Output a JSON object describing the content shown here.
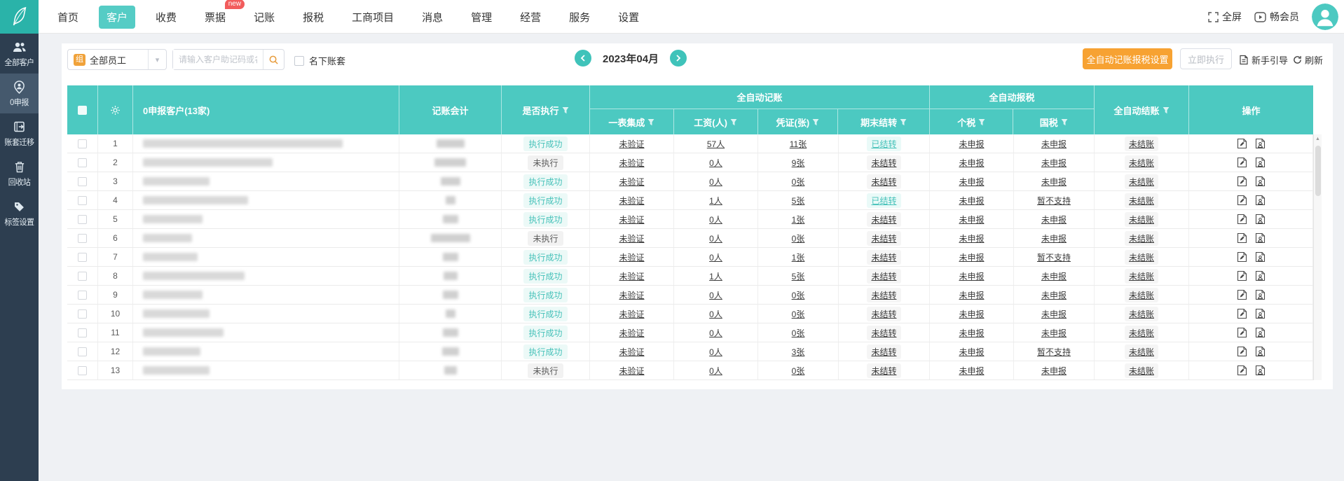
{
  "colors": {
    "teal": "#4cc9c1",
    "teal_dark": "#2ab3a9",
    "sidebar": "#2d3e50",
    "orange": "#f7a232",
    "badge_red": "#f25c5c"
  },
  "topnav": {
    "items": [
      {
        "label": "首页",
        "active": false
      },
      {
        "label": "客户",
        "active": true
      },
      {
        "label": "收费",
        "active": false
      },
      {
        "label": "票据",
        "active": false,
        "badge": "new"
      },
      {
        "label": "记账",
        "active": false
      },
      {
        "label": "报税",
        "active": false
      },
      {
        "label": "工商项目",
        "active": false
      },
      {
        "label": "消息",
        "active": false
      },
      {
        "label": "管理",
        "active": false
      },
      {
        "label": "经营",
        "active": false
      },
      {
        "label": "服务",
        "active": false
      },
      {
        "label": "设置",
        "active": false
      }
    ],
    "fullscreen_label": "全屏",
    "member_label": "畅会员"
  },
  "sidebar": {
    "items": [
      {
        "label": "全部客户",
        "icon": "users-icon",
        "active": false
      },
      {
        "label": "0申报",
        "icon": "person-pin-icon",
        "active": true
      },
      {
        "label": "账套迁移",
        "icon": "book-export-icon",
        "active": false
      },
      {
        "label": "回收站",
        "icon": "trash-icon",
        "active": false
      },
      {
        "label": "标签设置",
        "icon": "tag-icon",
        "active": false
      }
    ]
  },
  "toolbar": {
    "employee_filter": {
      "badge": "组",
      "value": "全部员工"
    },
    "search_placeholder": "请输入客户助记码或名称",
    "own_books_label": "名下账套",
    "period": "2023年04月",
    "settings_button": "全自动记账报税设置",
    "execute_button": "立即执行",
    "guide_button": "新手引导",
    "refresh_button": "刷新"
  },
  "table": {
    "client_header": "0申报客户(13家)",
    "accountant_header": "记账会计",
    "exec_header": "是否执行",
    "group_bookkeeping": {
      "label": "全自动记账",
      "children": [
        "一表集成",
        "工资(人)",
        "凭证(张)",
        "期末结转"
      ]
    },
    "group_tax": {
      "label": "全自动报税",
      "children": [
        "个税",
        "国税"
      ]
    },
    "closing_header": "全自动结账",
    "actions_header": "操作",
    "rows": [
      {
        "num": "1",
        "exec": "执行成功",
        "exec_ok": true,
        "integration": "未验证",
        "salary": "57人",
        "voucher": "11张",
        "carry": "已结转",
        "carry_done": true,
        "personal_tax": "未申报",
        "national_tax": "未申报",
        "closing": "未结账",
        "name_w": 285,
        "acct_w": 40
      },
      {
        "num": "2",
        "exec": "未执行",
        "exec_ok": false,
        "integration": "未验证",
        "salary": "0人",
        "voucher": "9张",
        "carry": "未结转",
        "carry_done": false,
        "personal_tax": "未申报",
        "national_tax": "未申报",
        "closing": "未结账",
        "name_w": 185,
        "acct_w": 45
      },
      {
        "num": "3",
        "exec": "执行成功",
        "exec_ok": true,
        "integration": "未验证",
        "salary": "0人",
        "voucher": "0张",
        "carry": "未结转",
        "carry_done": false,
        "personal_tax": "未申报",
        "national_tax": "未申报",
        "closing": "未结账",
        "name_w": 95,
        "acct_w": 28
      },
      {
        "num": "4",
        "exec": "执行成功",
        "exec_ok": true,
        "integration": "未验证",
        "salary": "1人",
        "voucher": "5张",
        "carry": "已结转",
        "carry_done": true,
        "personal_tax": "未申报",
        "national_tax": "暂不支持",
        "closing": "未结账",
        "name_w": 150,
        "acct_w": 14
      },
      {
        "num": "5",
        "exec": "执行成功",
        "exec_ok": true,
        "integration": "未验证",
        "salary": "0人",
        "voucher": "1张",
        "carry": "未结转",
        "carry_done": false,
        "personal_tax": "未申报",
        "national_tax": "未申报",
        "closing": "未结账",
        "name_w": 85,
        "acct_w": 22
      },
      {
        "num": "6",
        "exec": "未执行",
        "exec_ok": false,
        "integration": "未验证",
        "salary": "0人",
        "voucher": "0张",
        "carry": "未结转",
        "carry_done": false,
        "personal_tax": "未申报",
        "national_tax": "未申报",
        "closing": "未结账",
        "name_w": 70,
        "acct_w": 56
      },
      {
        "num": "7",
        "exec": "执行成功",
        "exec_ok": true,
        "integration": "未验证",
        "salary": "0人",
        "voucher": "1张",
        "carry": "未结转",
        "carry_done": false,
        "personal_tax": "未申报",
        "national_tax": "暂不支持",
        "closing": "未结账",
        "name_w": 78,
        "acct_w": 22
      },
      {
        "num": "8",
        "exec": "执行成功",
        "exec_ok": true,
        "integration": "未验证",
        "salary": "1人",
        "voucher": "5张",
        "carry": "未结转",
        "carry_done": false,
        "personal_tax": "未申报",
        "national_tax": "未申报",
        "closing": "未结账",
        "name_w": 145,
        "acct_w": 20
      },
      {
        "num": "9",
        "exec": "执行成功",
        "exec_ok": true,
        "integration": "未验证",
        "salary": "0人",
        "voucher": "0张",
        "carry": "未结转",
        "carry_done": false,
        "personal_tax": "未申报",
        "national_tax": "未申报",
        "closing": "未结账",
        "name_w": 85,
        "acct_w": 22
      },
      {
        "num": "10",
        "exec": "执行成功",
        "exec_ok": true,
        "integration": "未验证",
        "salary": "0人",
        "voucher": "0张",
        "carry": "未结转",
        "carry_done": false,
        "personal_tax": "未申报",
        "national_tax": "未申报",
        "closing": "未结账",
        "name_w": 95,
        "acct_w": 14
      },
      {
        "num": "11",
        "exec": "执行成功",
        "exec_ok": true,
        "integration": "未验证",
        "salary": "0人",
        "voucher": "0张",
        "carry": "未结转",
        "carry_done": false,
        "personal_tax": "未申报",
        "national_tax": "未申报",
        "closing": "未结账",
        "name_w": 115,
        "acct_w": 22
      },
      {
        "num": "12",
        "exec": "执行成功",
        "exec_ok": true,
        "integration": "未验证",
        "salary": "0人",
        "voucher": "3张",
        "carry": "未结转",
        "carry_done": false,
        "personal_tax": "未申报",
        "national_tax": "暂不支持",
        "closing": "未结账",
        "name_w": 82,
        "acct_w": 24
      },
      {
        "num": "13",
        "exec": "未执行",
        "exec_ok": false,
        "integration": "未验证",
        "salary": "0人",
        "voucher": "0张",
        "carry": "未结转",
        "carry_done": false,
        "personal_tax": "未申报",
        "national_tax": "未申报",
        "closing": "未结账",
        "name_w": 95,
        "acct_w": 18
      }
    ]
  }
}
